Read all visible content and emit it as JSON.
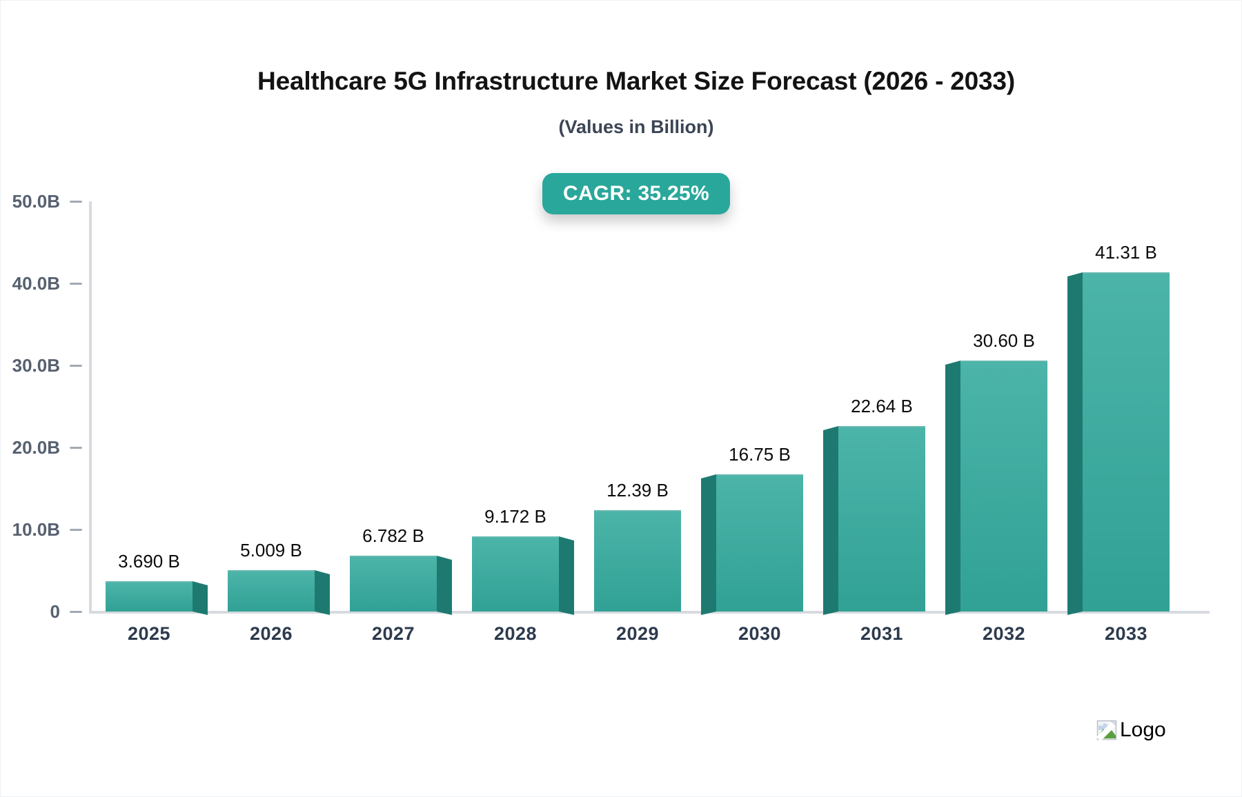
{
  "header": {
    "title": "Healthcare 5G Infrastructure Market Size Forecast (2026 - 2033)",
    "subtitle": "(Values in Billion)",
    "cagr_badge": "CAGR: 35.25%"
  },
  "chart_data": {
    "type": "bar",
    "title": "Healthcare 5G Infrastructure Market Size Forecast (2026 - 2033)",
    "subtitle": "(Values in Billion)",
    "cagr": "CAGR: 35.25%",
    "categories": [
      "2025",
      "2026",
      "2027",
      "2028",
      "2029",
      "2030",
      "2031",
      "2032",
      "2033"
    ],
    "values": [
      3.69,
      5.009,
      6.782,
      9.172,
      12.39,
      16.75,
      22.64,
      30.6,
      41.31
    ],
    "value_labels": [
      "3.690 B",
      "5.009 B",
      "6.782 B",
      "9.172 B",
      "12.39 B",
      "16.75 B",
      "22.64 B",
      "30.60 B",
      "41.31 B"
    ],
    "xlabel": "",
    "ylabel": "",
    "ylim": [
      0,
      50
    ],
    "y_tick_values": [
      0,
      10,
      20,
      30,
      40,
      50
    ],
    "y_tick_labels": [
      "0",
      "10.0B",
      "20.0B",
      "30.0B",
      "40.0B",
      "50.0B"
    ],
    "grid": false,
    "legend": false,
    "bar_style": "3d-pseudo-perspective",
    "colors": {
      "bar_face_top": "#4cb4a9",
      "bar_face_bottom": "#31a195",
      "bar_side": "#1e7a71",
      "badge": "#2aa79b",
      "axis": "#d7dade",
      "tick_dash": "#a2a9b3",
      "y_label": "#566070",
      "year_label": "#2d3a4d",
      "value_label": "#0b0b0b",
      "title": "#131313",
      "subtitle": "#3b4554"
    }
  },
  "footer": {
    "logo_text": "Logo"
  }
}
